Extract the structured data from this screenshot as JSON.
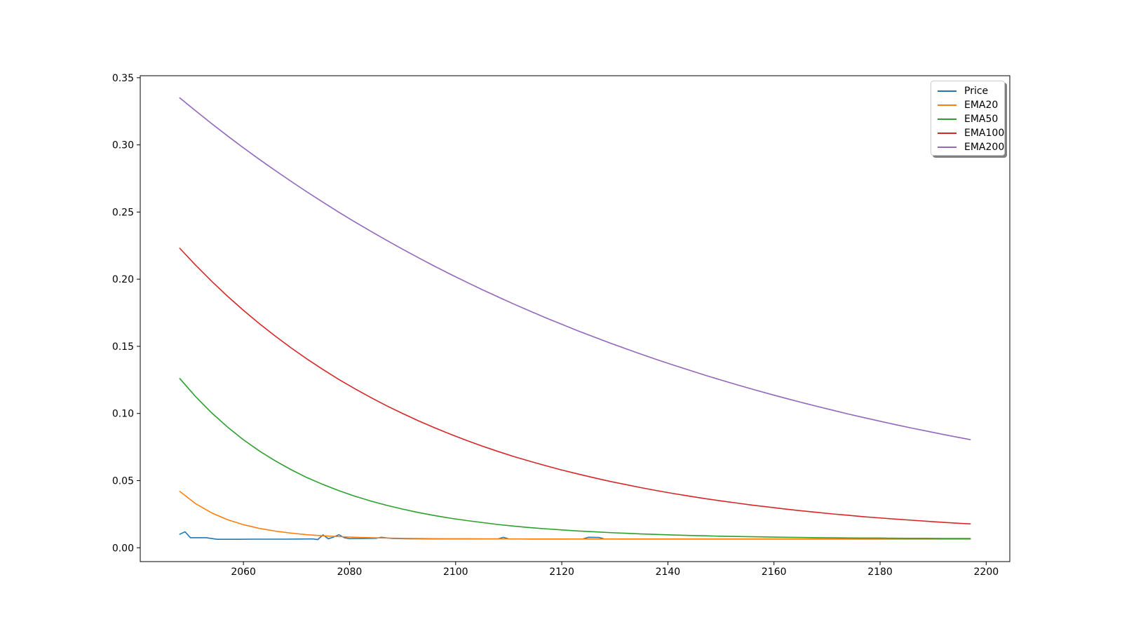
{
  "figure": {
    "background": "#ffffff",
    "title": ""
  },
  "legend": {
    "position": "upper right"
  },
  "chart_data": {
    "type": "line",
    "title": "",
    "xlabel": "",
    "ylabel": "",
    "grid": false,
    "legend_position": "upper right",
    "xlim": [
      2040.55,
      2204.45
    ],
    "ylim": [
      -0.0103,
      0.3515
    ],
    "xticks": [
      2060,
      2080,
      2100,
      2120,
      2140,
      2160,
      2180,
      2200
    ],
    "xtick_labels": [
      "2060",
      "2080",
      "2100",
      "2120",
      "2140",
      "2160",
      "2180",
      "2200"
    ],
    "yticks": [
      0.0,
      0.05,
      0.1,
      0.15,
      0.2,
      0.25,
      0.3,
      0.35
    ],
    "ytick_labels": [
      "0.00",
      "0.05",
      "0.10",
      "0.15",
      "0.20",
      "0.25",
      "0.30",
      "0.35"
    ],
    "series": [
      {
        "name": "Price",
        "color": "#1f77b4",
        "x": [
          2048,
          2049,
          2050,
          2051,
          2053,
          2055,
          2056,
          2059,
          2062,
          2065,
          2068,
          2071,
          2073,
          2074,
          2075,
          2076,
          2077,
          2078,
          2079,
          2080,
          2082,
          2085,
          2086,
          2088,
          2091,
          2095,
          2100,
          2105,
          2108,
          2109,
          2110,
          2115,
          2120,
          2124,
          2125,
          2127,
          2128,
          2132,
          2140,
          2150,
          2160,
          2170,
          2180,
          2190,
          2197
        ],
        "y": [
          0.0101,
          0.0119,
          0.0075,
          0.0075,
          0.0075,
          0.0063,
          0.0063,
          0.0063,
          0.0064,
          0.0064,
          0.0064,
          0.0065,
          0.0066,
          0.0061,
          0.0096,
          0.0067,
          0.008,
          0.0097,
          0.0075,
          0.0068,
          0.0069,
          0.007,
          0.0078,
          0.0069,
          0.0067,
          0.0066,
          0.0066,
          0.0066,
          0.0066,
          0.0078,
          0.0066,
          0.0065,
          0.0065,
          0.0066,
          0.0078,
          0.0077,
          0.0066,
          0.0065,
          0.0065,
          0.0065,
          0.0065,
          0.0065,
          0.0065,
          0.0065,
          0.0065
        ]
      },
      {
        "name": "EMA20",
        "color": "#ff7f0e",
        "x": [
          2048,
          2051,
          2054,
          2057,
          2060,
          2063,
          2066,
          2069,
          2072,
          2075,
          2078,
          2081,
          2084,
          2087,
          2090,
          2093,
          2096,
          2099,
          2102,
          2105,
          2108,
          2111,
          2114,
          2117,
          2120,
          2123,
          2126,
          2129,
          2132,
          2135,
          2138,
          2141,
          2144,
          2147,
          2150,
          2153,
          2156,
          2159,
          2162,
          2165,
          2168,
          2171,
          2174,
          2177,
          2180,
          2183,
          2186,
          2189,
          2192,
          2195,
          2197
        ],
        "y": [
          0.042,
          0.0328,
          0.026,
          0.0209,
          0.0172,
          0.0144,
          0.0124,
          0.0109,
          0.0097,
          0.0089,
          0.0083,
          0.0078,
          0.0075,
          0.0072,
          0.007,
          0.0069,
          0.0068,
          0.0067,
          0.0067,
          0.0066,
          0.0066,
          0.0066,
          0.0065,
          0.0065,
          0.0065,
          0.0065,
          0.0065,
          0.0065,
          0.0065,
          0.0065,
          0.0065,
          0.0065,
          0.0065,
          0.0065,
          0.0065,
          0.0065,
          0.0065,
          0.0065,
          0.0065,
          0.0065,
          0.0065,
          0.0065,
          0.0065,
          0.0065,
          0.0065,
          0.0065,
          0.0065,
          0.0065,
          0.0065,
          0.0065,
          0.0065
        ]
      },
      {
        "name": "EMA50",
        "color": "#2ca02c",
        "x": [
          2048,
          2051,
          2054,
          2057,
          2060,
          2063,
          2066,
          2069,
          2072,
          2075,
          2078,
          2081,
          2084,
          2087,
          2090,
          2093,
          2096,
          2099,
          2102,
          2105,
          2108,
          2111,
          2114,
          2117,
          2120,
          2123,
          2126,
          2129,
          2132,
          2135,
          2138,
          2141,
          2144,
          2147,
          2150,
          2153,
          2156,
          2159,
          2162,
          2165,
          2168,
          2171,
          2174,
          2177,
          2180,
          2183,
          2186,
          2189,
          2192,
          2195,
          2197
        ],
        "y": [
          0.126,
          0.1125,
          0.1005,
          0.0899,
          0.0804,
          0.0721,
          0.0647,
          0.0581,
          0.0522,
          0.0471,
          0.0425,
          0.0384,
          0.0348,
          0.0316,
          0.0288,
          0.0262,
          0.024,
          0.022,
          0.0203,
          0.0188,
          0.0173,
          0.0161,
          0.015,
          0.0141,
          0.0133,
          0.0125,
          0.0119,
          0.0113,
          0.0108,
          0.0103,
          0.0099,
          0.0095,
          0.0092,
          0.0089,
          0.0086,
          0.0084,
          0.0082,
          0.008,
          0.0078,
          0.0077,
          0.0075,
          0.0074,
          0.0073,
          0.0072,
          0.0072,
          0.0071,
          0.007,
          0.007,
          0.0069,
          0.0069,
          0.0069
        ]
      },
      {
        "name": "EMA100",
        "color": "#d62728",
        "x": [
          2048,
          2051,
          2054,
          2057,
          2060,
          2063,
          2066,
          2069,
          2072,
          2075,
          2078,
          2081,
          2084,
          2087,
          2090,
          2093,
          2096,
          2099,
          2102,
          2105,
          2108,
          2111,
          2114,
          2117,
          2120,
          2123,
          2126,
          2129,
          2132,
          2135,
          2138,
          2141,
          2144,
          2147,
          2150,
          2153,
          2156,
          2159,
          2162,
          2165,
          2168,
          2171,
          2174,
          2177,
          2180,
          2183,
          2186,
          2189,
          2192,
          2195,
          2197
        ],
        "y": [
          0.223,
          0.2104,
          0.1985,
          0.1873,
          0.1768,
          0.1669,
          0.1576,
          0.1488,
          0.1405,
          0.1327,
          0.1253,
          0.1184,
          0.1119,
          0.1057,
          0.1,
          0.0945,
          0.0894,
          0.0846,
          0.08,
          0.0757,
          0.0717,
          0.0679,
          0.0644,
          0.0611,
          0.0579,
          0.055,
          0.0522,
          0.0495,
          0.0471,
          0.0447,
          0.0425,
          0.0404,
          0.0385,
          0.0366,
          0.0349,
          0.0333,
          0.0317,
          0.0303,
          0.0289,
          0.0276,
          0.0264,
          0.0252,
          0.0242,
          0.0231,
          0.0222,
          0.0213,
          0.0205,
          0.0197,
          0.0189,
          0.0182,
          0.0178
        ]
      },
      {
        "name": "EMA200",
        "color": "#9467bd",
        "x": [
          2048,
          2051,
          2054,
          2057,
          2060,
          2063,
          2066,
          2069,
          2072,
          2075,
          2078,
          2081,
          2084,
          2087,
          2090,
          2093,
          2096,
          2099,
          2102,
          2105,
          2108,
          2111,
          2114,
          2117,
          2120,
          2123,
          2126,
          2129,
          2132,
          2135,
          2138,
          2141,
          2144,
          2147,
          2150,
          2153,
          2156,
          2159,
          2162,
          2165,
          2168,
          2171,
          2174,
          2177,
          2180,
          2183,
          2186,
          2189,
          2192,
          2195,
          2197
        ],
        "y": [
          0.335,
          0.3253,
          0.3159,
          0.3067,
          0.2978,
          0.2892,
          0.2809,
          0.2728,
          0.2649,
          0.2573,
          0.2498,
          0.2426,
          0.2357,
          0.2289,
          0.2223,
          0.2159,
          0.2097,
          0.2037,
          0.1979,
          0.1922,
          0.1868,
          0.1814,
          0.1763,
          0.1712,
          0.1664,
          0.1616,
          0.1571,
          0.1526,
          0.1483,
          0.1441,
          0.14,
          0.1361,
          0.1323,
          0.1285,
          0.1249,
          0.1214,
          0.118,
          0.1147,
          0.1115,
          0.1084,
          0.1054,
          0.1025,
          0.0996,
          0.0969,
          0.0942,
          0.0916,
          0.0891,
          0.0867,
          0.0843,
          0.082,
          0.0805
        ]
      }
    ]
  }
}
